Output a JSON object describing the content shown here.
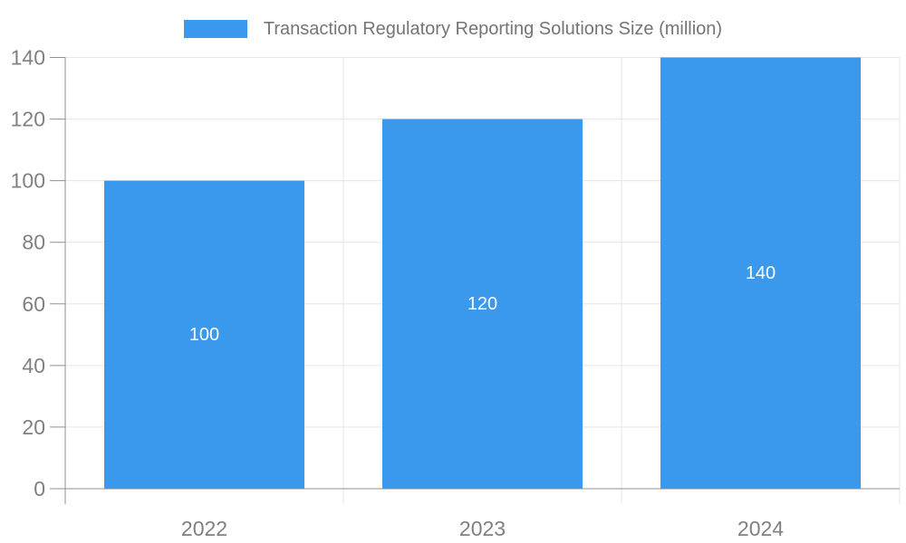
{
  "legend": {
    "label": "Transaction Regulatory Reporting Solutions Size (million)"
  },
  "chart_data": {
    "type": "bar",
    "title": "",
    "series_name": "Transaction Regulatory Reporting Solutions Size (million)",
    "categories": [
      "2022",
      "2023",
      "2024"
    ],
    "values": [
      100,
      120,
      140
    ],
    "data_labels": [
      "100",
      "120",
      "140"
    ],
    "xlabel": "",
    "ylabel": "",
    "ylim": [
      0,
      140
    ],
    "yticks": [
      0,
      20,
      40,
      60,
      80,
      100,
      120,
      140
    ],
    "grid": true,
    "legend_position": "top"
  },
  "colors": {
    "bar": "#3a99ec",
    "data_label": "#ffffff",
    "axis_label": "#808080",
    "legend_text": "#757575",
    "gridline": "#e6e6e6",
    "axis_line": "#8f8f8f"
  }
}
